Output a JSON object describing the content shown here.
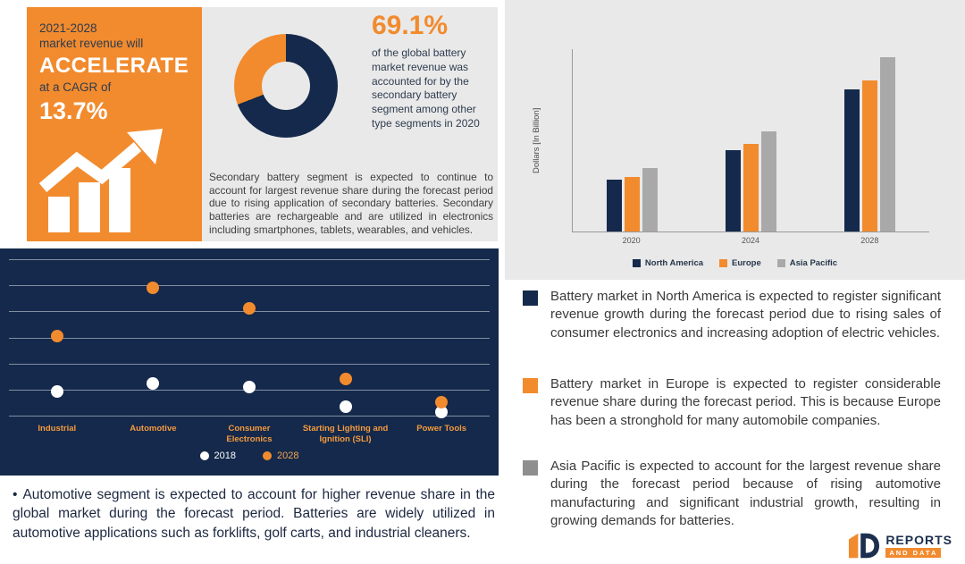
{
  "palette": {
    "orange": "#f28b2e",
    "navy": "#14294b",
    "bar_gray": "#a9a9a9",
    "panel_gray": "#e9e9e9"
  },
  "cagr_panel": {
    "line1": "2021-2028",
    "line2": "market revenue will",
    "accelerate": "ACCELERATE",
    "cagr_prefix": "at a CAGR of",
    "cagr_value": "13.7%"
  },
  "secondary_panel": {
    "percent": "69.1%",
    "caption": "of the global battery market revenue was accounted for by the secondary battery segment among other type segments in 2020",
    "paragraph": "Secondary battery segment is expected to continue to account for largest revenue share during the forecast period due to rising application of secondary batteries. Secondary batteries are rechargeable and are utilized in electronics including smartphones, tablets, wearables, and vehicles."
  },
  "left_bullet": {
    "marker": "•",
    "text": "Automotive segment is expected to account for higher revenue share in the global market during the forecast period. Batteries are widely utilized in automotive applications such as forklifts, golf carts, and industrial cleaners."
  },
  "right_bullets": [
    {
      "marker_color": "#14294b",
      "text": "Battery market in North America is expected to register significant revenue growth during the forecast period due to rising sales of consumer electronics and increasing adoption of electric vehicles."
    },
    {
      "marker_color": "#f28b2e",
      "text": "Battery market in Europe is expected to register considerable revenue share during the forecast period. This is because Europe has been a stronghold for many automobile companies."
    },
    {
      "marker_color": "#8e8e8e",
      "text": "Asia Pacific is expected to account for the largest revenue share during the forecast period because of rising automotive manufacturing and significant industrial growth, resulting in growing demands for batteries."
    }
  ],
  "logo": {
    "reports": "REPORTS",
    "and_data": "AND DATA"
  },
  "chart_data": [
    {
      "id": "type-share-donut",
      "type": "pie",
      "title": "Secondary battery segment share of global battery market revenue, 2020",
      "slices": [
        {
          "label": "Secondary battery segment",
          "value": 69.1,
          "color": "#14294b"
        },
        {
          "label": "Other type segments",
          "value": 30.9,
          "color": "#f28b2e"
        }
      ],
      "center_label": "69.1%"
    },
    {
      "id": "segment-dot-plot",
      "type": "scatter",
      "title": "Battery market revenue share by application segment, 2018 vs 2028",
      "categories": [
        "Industrial",
        "Automotive",
        "Consumer Electronics",
        "Starting Lighting and Ignition (SLI)",
        "Power Tools"
      ],
      "series": [
        {
          "name": "2018",
          "color": "#ffffff",
          "label_color": "#ffffff",
          "values": [
            16,
            21,
            19,
            6,
            3
          ]
        },
        {
          "name": "2028",
          "color": "#f28b2e",
          "label_color": "#f5a34f",
          "values": [
            51,
            82,
            69,
            24,
            9
          ]
        }
      ],
      "ylim": [
        0,
        100
      ],
      "grid": true,
      "gridline_count": 7,
      "legend_position": "bottom"
    },
    {
      "id": "regional-bar-chart",
      "type": "bar",
      "title": "Battery market revenue by region",
      "categories": [
        "2020",
        "2024",
        "2028"
      ],
      "series": [
        {
          "name": "North America",
          "color": "#14294b",
          "values": [
            62,
            98,
            171
          ]
        },
        {
          "name": "Europe",
          "color": "#f28b2e",
          "values": [
            65,
            105,
            181
          ]
        },
        {
          "name": "Asia Pacific",
          "color": "#a9a9a9",
          "values": [
            76,
            120,
            209
          ]
        }
      ],
      "ylabel": "Dollars [In Billion]",
      "ylim": [
        0,
        220
      ],
      "grid": false,
      "legend_position": "bottom"
    }
  ]
}
